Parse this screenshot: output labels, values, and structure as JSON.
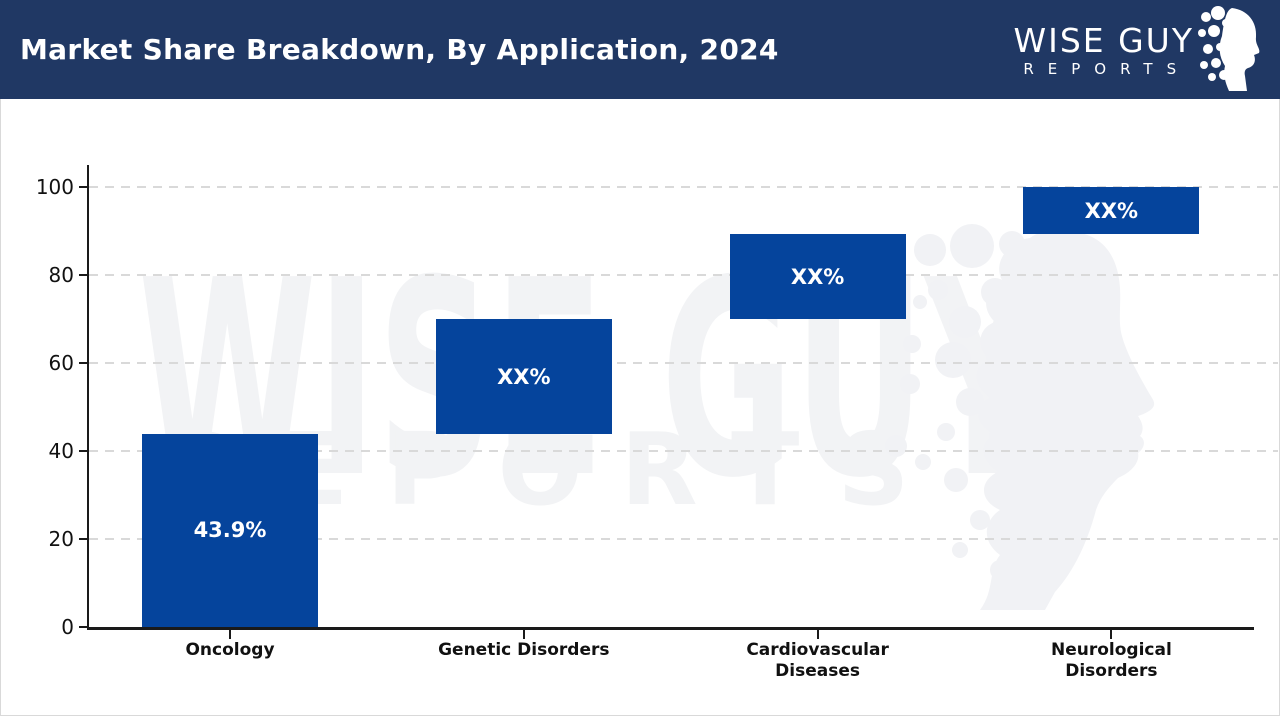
{
  "header": {
    "title": "Market Share Breakdown, By Application, 2024",
    "logo": {
      "brand_line1": "WISE GUY",
      "brand_line2": "REPORTS"
    }
  },
  "watermark": {
    "line1": "WISE GUY",
    "line2": "REPORTS"
  },
  "chart_data": {
    "type": "bar",
    "subtype": "waterfall",
    "title": "Market Share Breakdown, By Application, 2024",
    "categories": [
      "Oncology",
      "Genetic Disorders",
      "Cardiovascular Diseases",
      "Neurological Disorders"
    ],
    "series": [
      {
        "name": "Market share (%)",
        "segments": [
          {
            "category": "Oncology",
            "from": 0,
            "to": 43.9,
            "label": "43.9%"
          },
          {
            "category": "Genetic Disorders",
            "from": 43.9,
            "to": 69.9,
            "label": "XX%"
          },
          {
            "category": "Cardiovascular Diseases",
            "from": 69.9,
            "to": 89.3,
            "label": "XX%"
          },
          {
            "category": "Neurological Disorders",
            "from": 89.3,
            "to": 100,
            "label": "XX%"
          }
        ]
      }
    ],
    "ylim": [
      0,
      100
    ],
    "yticks": [
      0,
      20,
      40,
      60,
      80,
      100
    ],
    "xlabel": "",
    "ylabel": "",
    "grid": "horizontal-dashed",
    "legend": "none",
    "colors": {
      "bar": "#05449c",
      "bar_label": "#ffffff",
      "grid": "#d9d9d9",
      "axis": "#1a1a1a",
      "header_bg": "#203864",
      "watermark": "#f2f3f5"
    }
  }
}
